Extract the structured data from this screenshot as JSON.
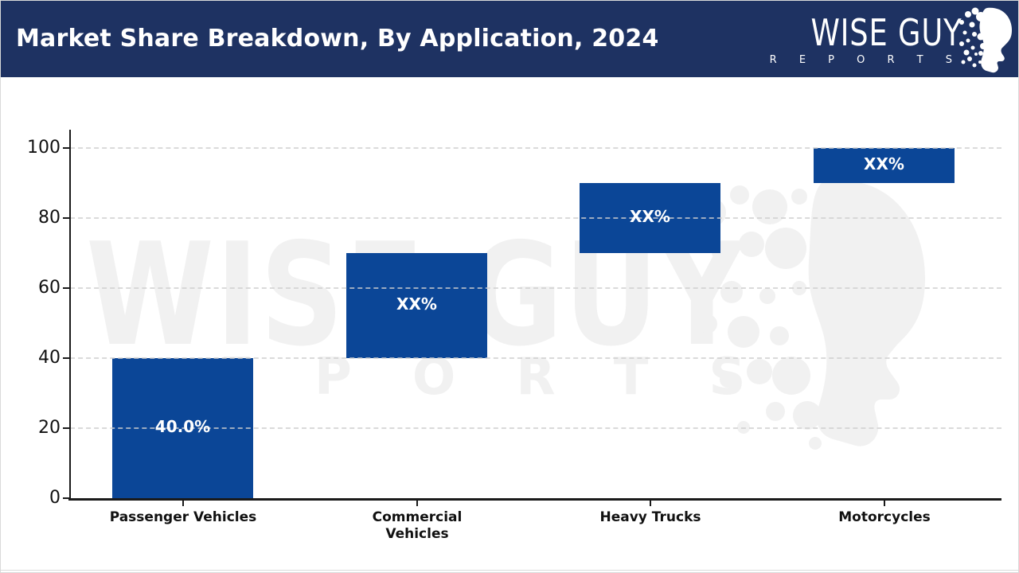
{
  "header": {
    "title": "Market Share Breakdown, By Application, 2024",
    "bg_color": "#1e3262",
    "logo": {
      "line1": "WISE GUY",
      "line2": "R E P O R T S"
    }
  },
  "watermark": {
    "line1": "WISE GUY",
    "line2": "REPORTS"
  },
  "chart_data": {
    "type": "bar",
    "subtype": "waterfall",
    "title": "Market Share Breakdown, By Application, 2024",
    "categories": [
      "Passenger Vehicles",
      "Commercial\nVehicles",
      "Heavy Trucks",
      "Motorcycles"
    ],
    "segments": [
      {
        "category": "Passenger Vehicles",
        "start": 0,
        "end": 40,
        "label": "40.0%"
      },
      {
        "category": "Commercial Vehicles",
        "start": 40,
        "end": 70,
        "label": "XX%"
      },
      {
        "category": "Heavy Trucks",
        "start": 70,
        "end": 90,
        "label": "XX%"
      },
      {
        "category": "Motorcycles",
        "start": 90,
        "end": 100,
        "label": "XX%"
      }
    ],
    "y_ticks": [
      0,
      20,
      40,
      60,
      80,
      100
    ],
    "ylim": [
      0,
      105
    ],
    "xlabel": "",
    "ylabel": "",
    "bar_color": "#0b4697",
    "label_color": "#ffffff",
    "grid": "horizontal-dashed",
    "legend": "none"
  }
}
